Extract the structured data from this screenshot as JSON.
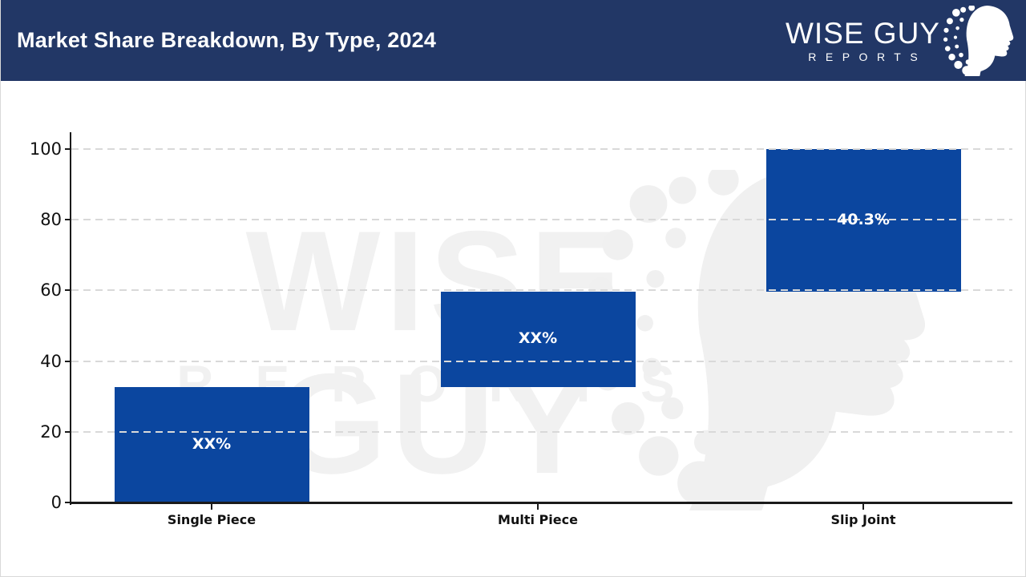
{
  "header": {
    "title": "Market Share Breakdown, By Type, 2024",
    "logo": {
      "line1": "WISE GUY",
      "line2": "REPORTS"
    }
  },
  "watermark": {
    "line1": "WISE GUY",
    "line2": "REPORTS"
  },
  "chart_data": {
    "type": "bar",
    "subtype": "waterfall",
    "title": "Market Share Breakdown, By Type, 2024",
    "categories": [
      "Single Piece",
      "Multi Piece",
      "Slip Joint"
    ],
    "segments": [
      {
        "category": "Single Piece",
        "start": 0,
        "end": 32.6,
        "label": "XX%"
      },
      {
        "category": "Multi Piece",
        "start": 32.6,
        "end": 59.7,
        "label": "XX%"
      },
      {
        "category": "Slip Joint",
        "start": 59.7,
        "end": 100,
        "label": "40.3%"
      }
    ],
    "xlabel": "",
    "ylabel": "",
    "ylim": [
      0,
      100
    ],
    "yticks": [
      0,
      20,
      40,
      60,
      80,
      100
    ],
    "grid": "horizontal-dashed",
    "legend": "none",
    "colors": {
      "bar": "#0b469f",
      "bar_label": "#ffffff",
      "grid": "#d9d9d9",
      "axis": "#1a1a1a",
      "header_bg": "#223766",
      "watermark": "#f1f1f1"
    }
  }
}
